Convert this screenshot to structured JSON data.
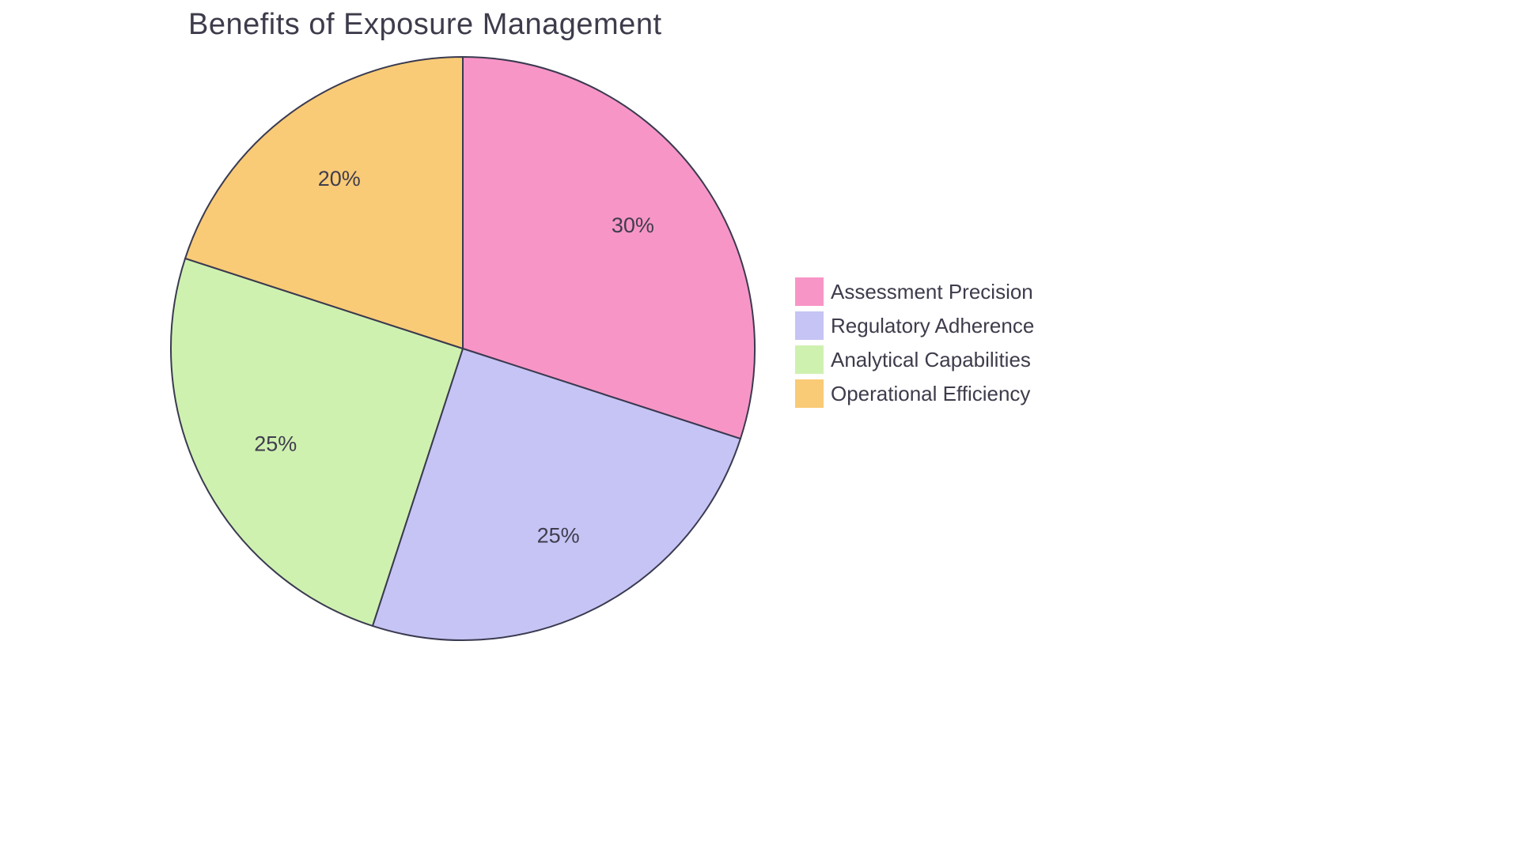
{
  "page": {
    "background_color": "#FFFFFF"
  },
  "chart_data": {
    "type": "pie",
    "title": "Benefits of Exposure Management",
    "start_angle_deg": 0,
    "direction": "clockwise",
    "legend_position": "right",
    "stroke_color": "#3a3a50",
    "stroke_width": 2,
    "label_color": "#3f3d4d",
    "slices": [
      {
        "label": "Assessment Precision",
        "value": 30,
        "percent_label": "30%",
        "color": "#F895C7"
      },
      {
        "label": "Regulatory Adherence",
        "value": 25,
        "percent_label": "25%",
        "color": "#C6C4F4"
      },
      {
        "label": "Analytical Capabilities",
        "value": 25,
        "percent_label": "25%",
        "color": "#CFF1B0"
      },
      {
        "label": "Operational Efficiency",
        "value": 20,
        "percent_label": "20%",
        "color": "#F9CB76"
      }
    ]
  }
}
